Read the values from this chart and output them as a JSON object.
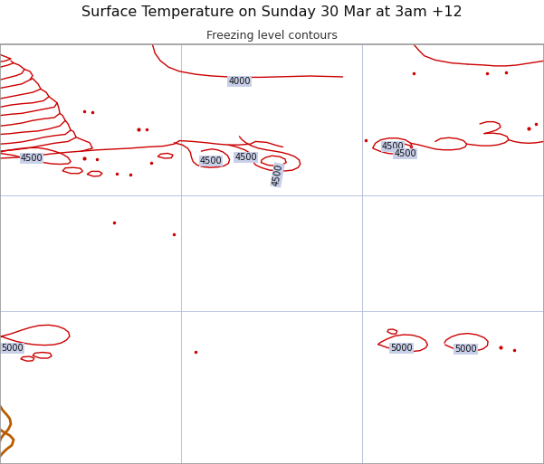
{
  "title": "Surface Temperature on Sunday 30 Mar at 3am +12",
  "subtitle": "Freezing level contours",
  "bg_color": "#c8cfe8",
  "header_bg": "#ffffff",
  "contour_color": "#cc0000",
  "land_color": "#b85c00",
  "grid_color": "#b0b8d8",
  "label_color": "#111111",
  "border_color": "#999999",
  "title_fontsize": 11.5,
  "subtitle_fontsize": 9,
  "figsize": [
    6.01,
    5.13
  ],
  "dpi": 100
}
